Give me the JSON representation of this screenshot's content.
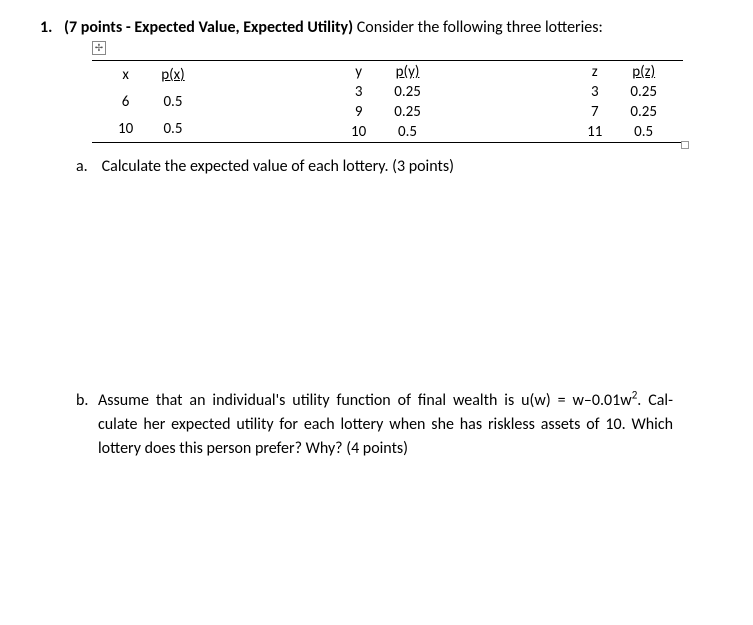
{
  "question": {
    "number": "1.",
    "points_label": "(7 points - Expected Value, Expected Utility)",
    "intro": "Consider the following three lotteries:"
  },
  "lotteries": {
    "x": {
      "var_label": "x",
      "prob_label": "p(x)",
      "rows": [
        {
          "val": "6",
          "p": "0.5"
        },
        {
          "val": "10",
          "p": "0.5"
        }
      ]
    },
    "y": {
      "var_label": "y",
      "prob_label": "p(y)",
      "rows": [
        {
          "val": "3",
          "p": "0.25"
        },
        {
          "val": "9",
          "p": "0.25"
        },
        {
          "val": "10",
          "p": "0.5"
        }
      ]
    },
    "z": {
      "var_label": "z",
      "prob_label": "p(z)",
      "rows": [
        {
          "val": "3",
          "p": "0.25"
        },
        {
          "val": "7",
          "p": "0.25"
        },
        {
          "val": "11",
          "p": "0.5"
        }
      ]
    }
  },
  "part_a": {
    "letter": "a.",
    "text": "Calculate the expected value of each lottery. (3 points)"
  },
  "part_b": {
    "letter": "b.",
    "line1_prefix": "Assume that an individual's utility function of final wealth is u(w) = w–0.01w",
    "line1_sup": "2",
    "line1_suffix": ". Cal-",
    "line2": "culate her expected utility for each lottery when she has riskless assets of 10.",
    "line3": "Which lottery does this person prefer? Why? (4 points)"
  },
  "anchor_glyph": "✢"
}
